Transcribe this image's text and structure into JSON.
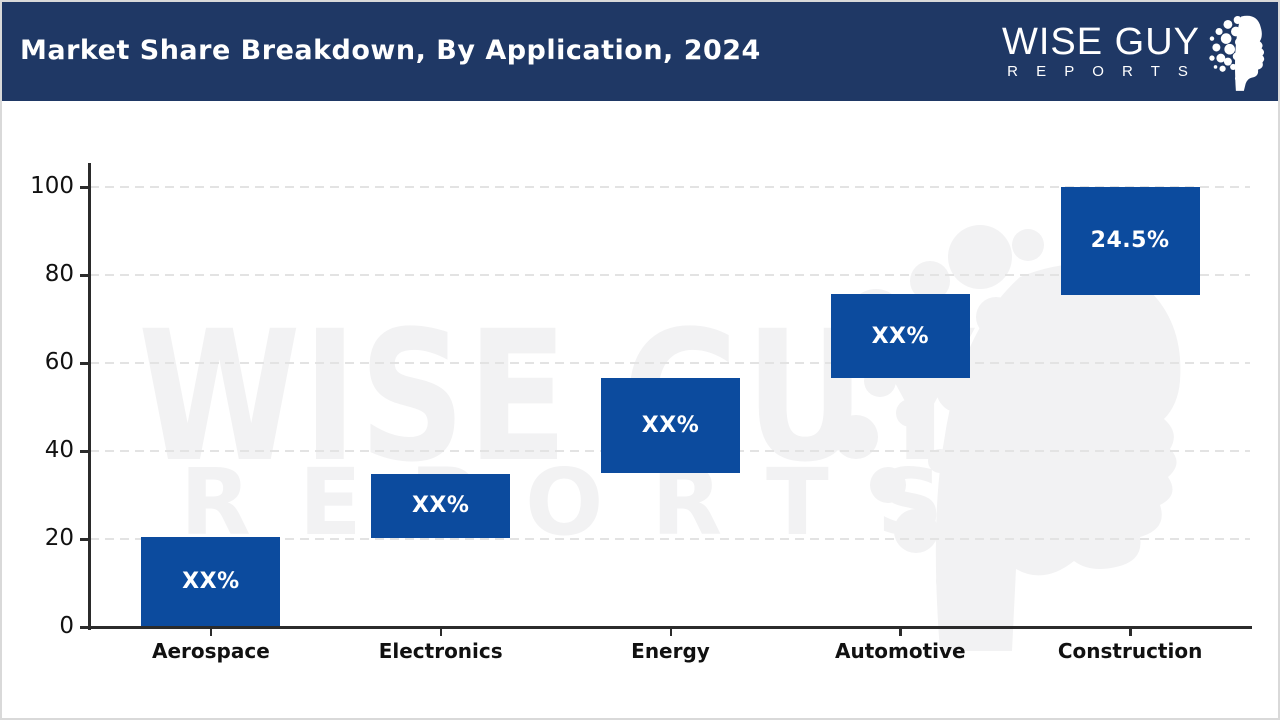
{
  "header": {
    "title": "Market Share Breakdown, By Application, 2024",
    "logo": {
      "line1": "WISE GUY",
      "line2": "R E P O R T S"
    }
  },
  "watermark": {
    "line1": "WISE GUY",
    "line2": "REPORTS"
  },
  "colors": {
    "header_navy": "#1F3865",
    "bar_blue": "#0C4B9E",
    "grid_gray": "#E3E3E3",
    "axis_black": "#2B2B2B",
    "watermark_gray": "#F2F2F3",
    "frame_gray": "#D9D9D9"
  },
  "chart_data": {
    "type": "bar",
    "subtype": "waterfall",
    "title": "Market Share Breakdown, By Application, 2024",
    "xlabel": "",
    "ylabel": "",
    "categories": [
      "Aerospace",
      "Electronics",
      "Energy",
      "Automotive",
      "Construction"
    ],
    "segments": [
      {
        "category": "Aerospace",
        "start": 0,
        "end": 20.5,
        "label": "XX%"
      },
      {
        "category": "Electronics",
        "start": 20.3,
        "end": 34.8,
        "label": "XX%"
      },
      {
        "category": "Energy",
        "start": 35,
        "end": 56.6,
        "label": "XX%"
      },
      {
        "category": "Automotive",
        "start": 56.6,
        "end": 75.6,
        "label": "XX%"
      },
      {
        "category": "Construction",
        "start": 75.5,
        "end": 100,
        "label": "24.5%"
      }
    ],
    "yticks": [
      0,
      20,
      40,
      60,
      80,
      100
    ],
    "ylim": [
      0,
      105
    ],
    "grid": "horizontal-dashed",
    "legend": "none",
    "bar_color": "#0C4B9E",
    "bar_label_color": "#FFFFFF"
  }
}
